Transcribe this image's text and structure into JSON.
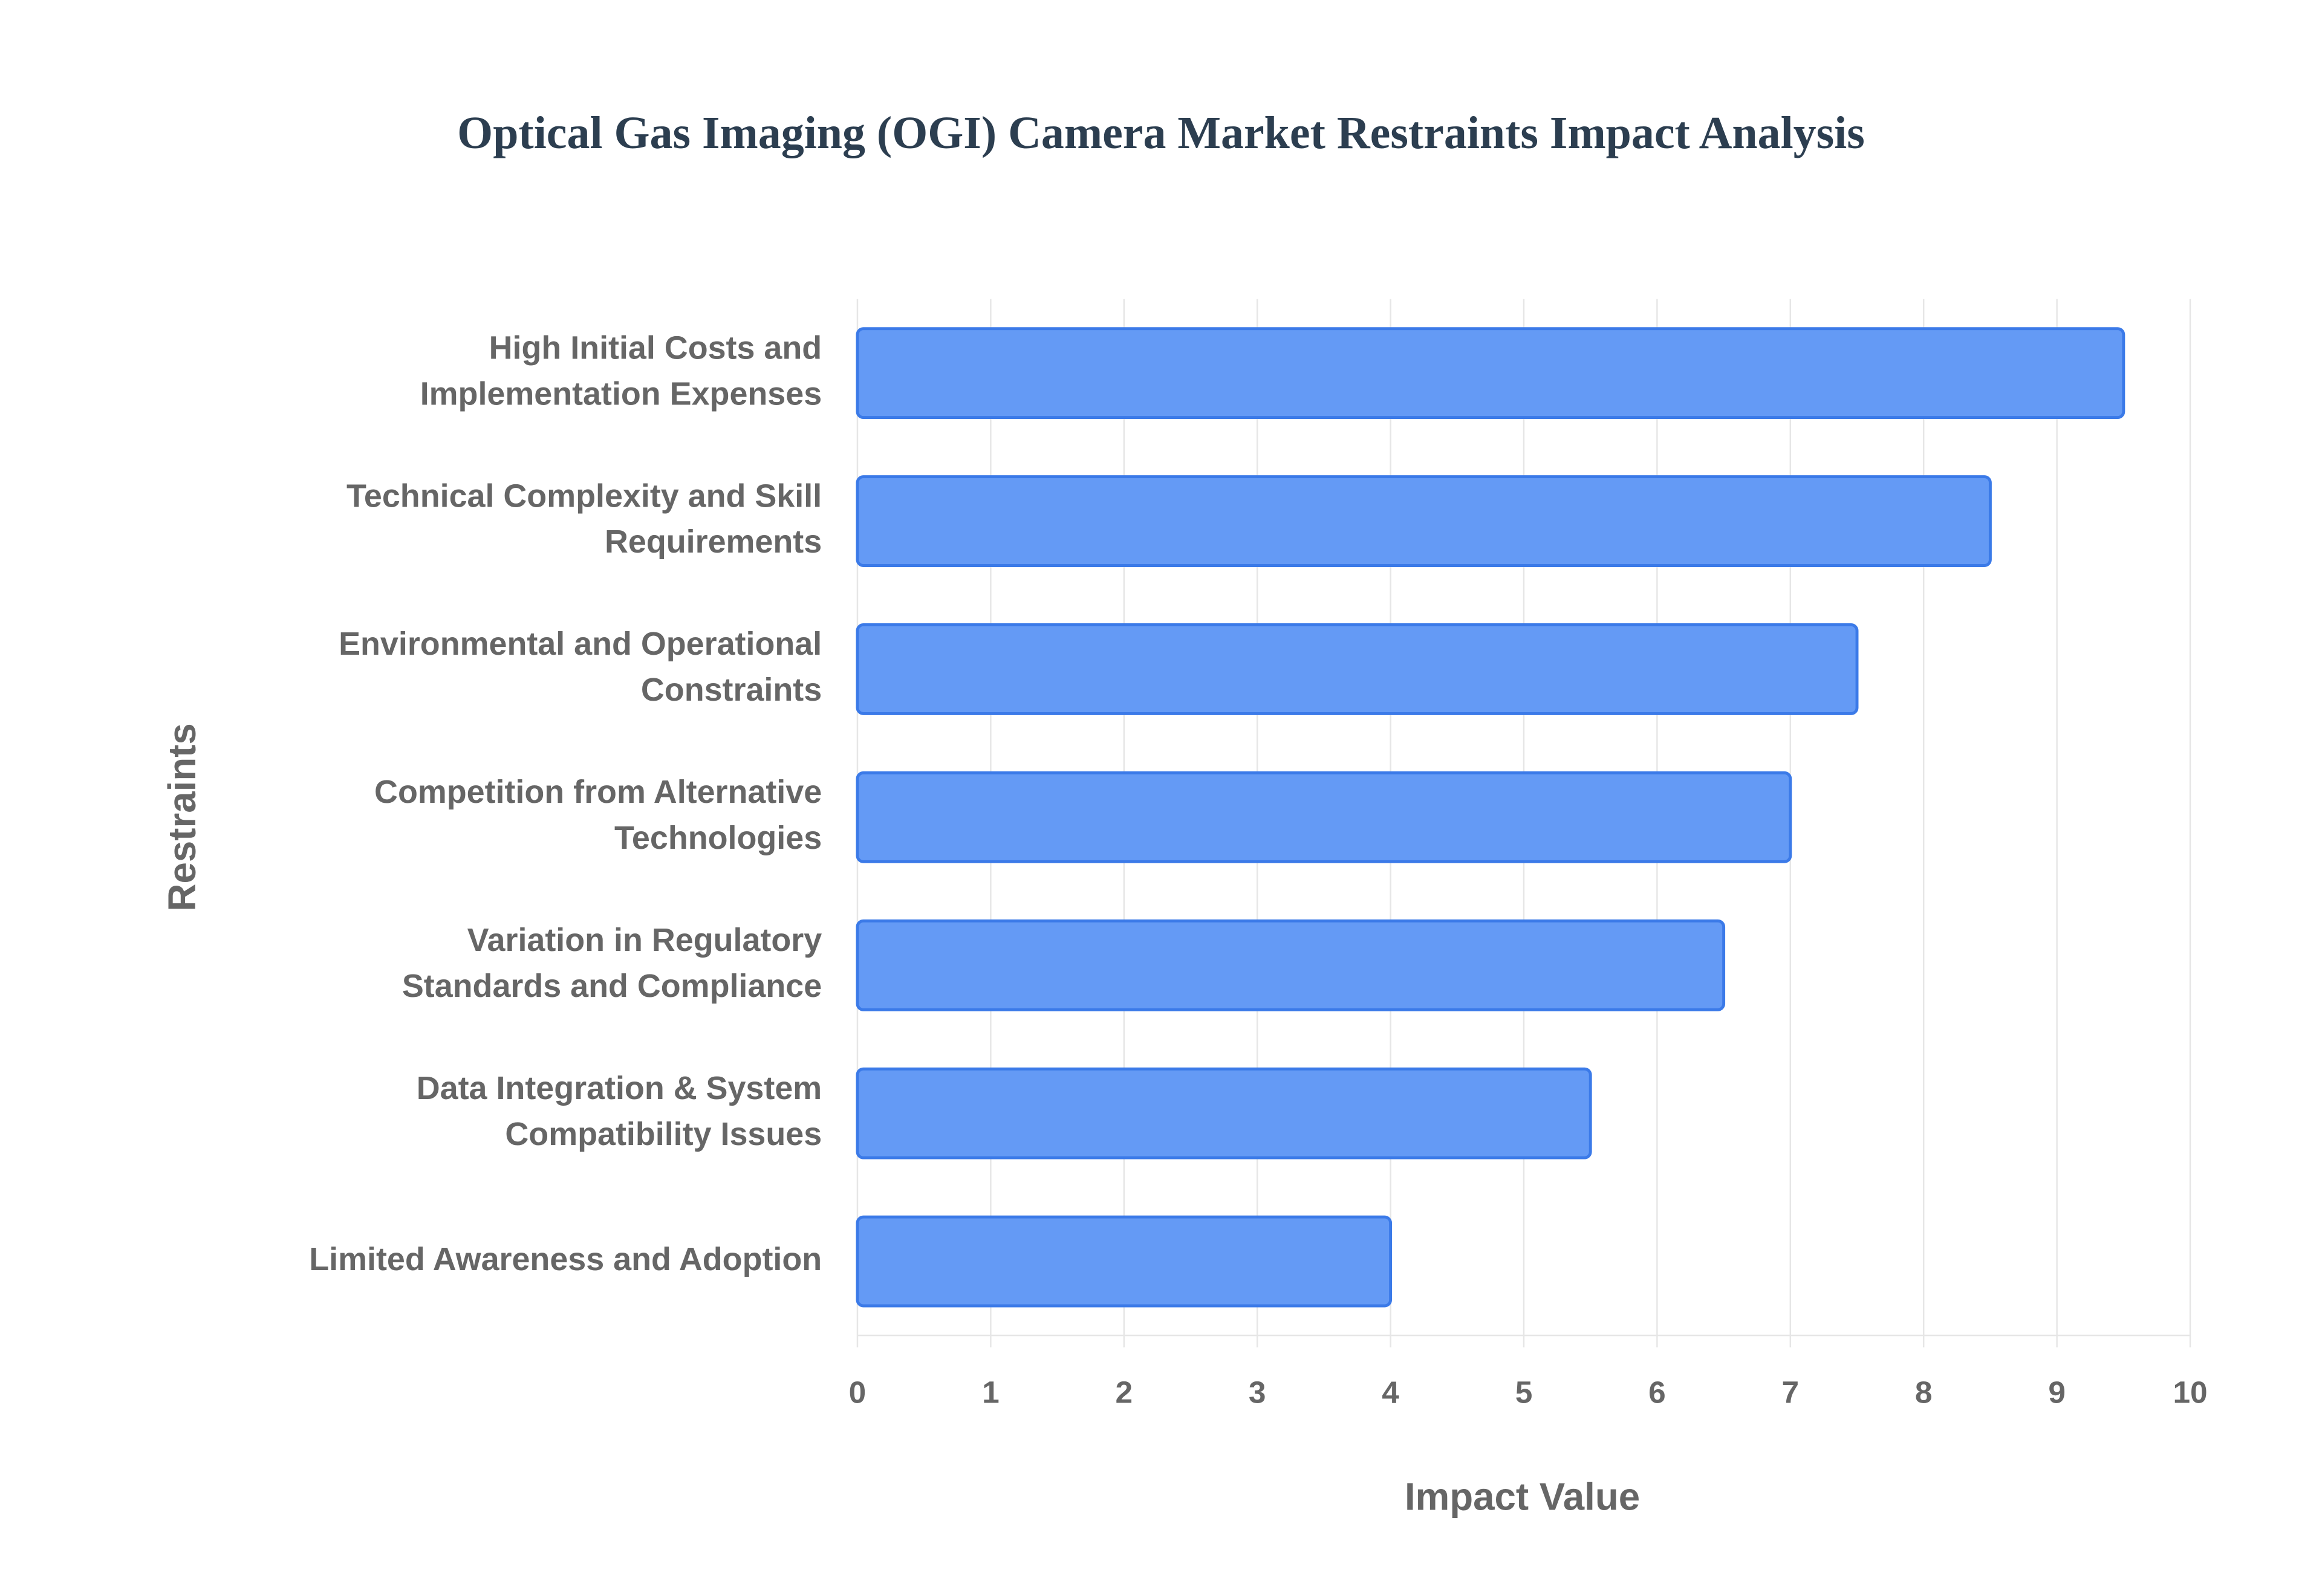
{
  "chart_data": {
    "type": "bar",
    "orientation": "horizontal",
    "title": "Optical Gas Imaging (OGI) Camera Market Restraints Impact Analysis",
    "x_label": "Impact Value",
    "y_label": "Restraints",
    "categories": [
      [
        "High Initial Costs and",
        "Implementation Expenses"
      ],
      [
        "Technical Complexity and Skill",
        "Requirements"
      ],
      [
        "Environmental and Operational",
        "Constraints"
      ],
      [
        "Competition from Alternative",
        "Technologies"
      ],
      [
        "Variation in Regulatory",
        "Standards and Compliance"
      ],
      [
        "Data Integration & System",
        "Compatibility Issues"
      ],
      [
        "Limited Awareness and Adoption"
      ]
    ],
    "values": [
      9.5,
      8.5,
      7.5,
      7,
      6.5,
      5.5,
      4
    ],
    "color": "#6198f5",
    "edge_color": "#3b7ae8",
    "xlim": [
      0,
      10
    ],
    "xticks": [
      0,
      1,
      2,
      3,
      4,
      5,
      6,
      7,
      8,
      9,
      10
    ],
    "grid": true
  }
}
